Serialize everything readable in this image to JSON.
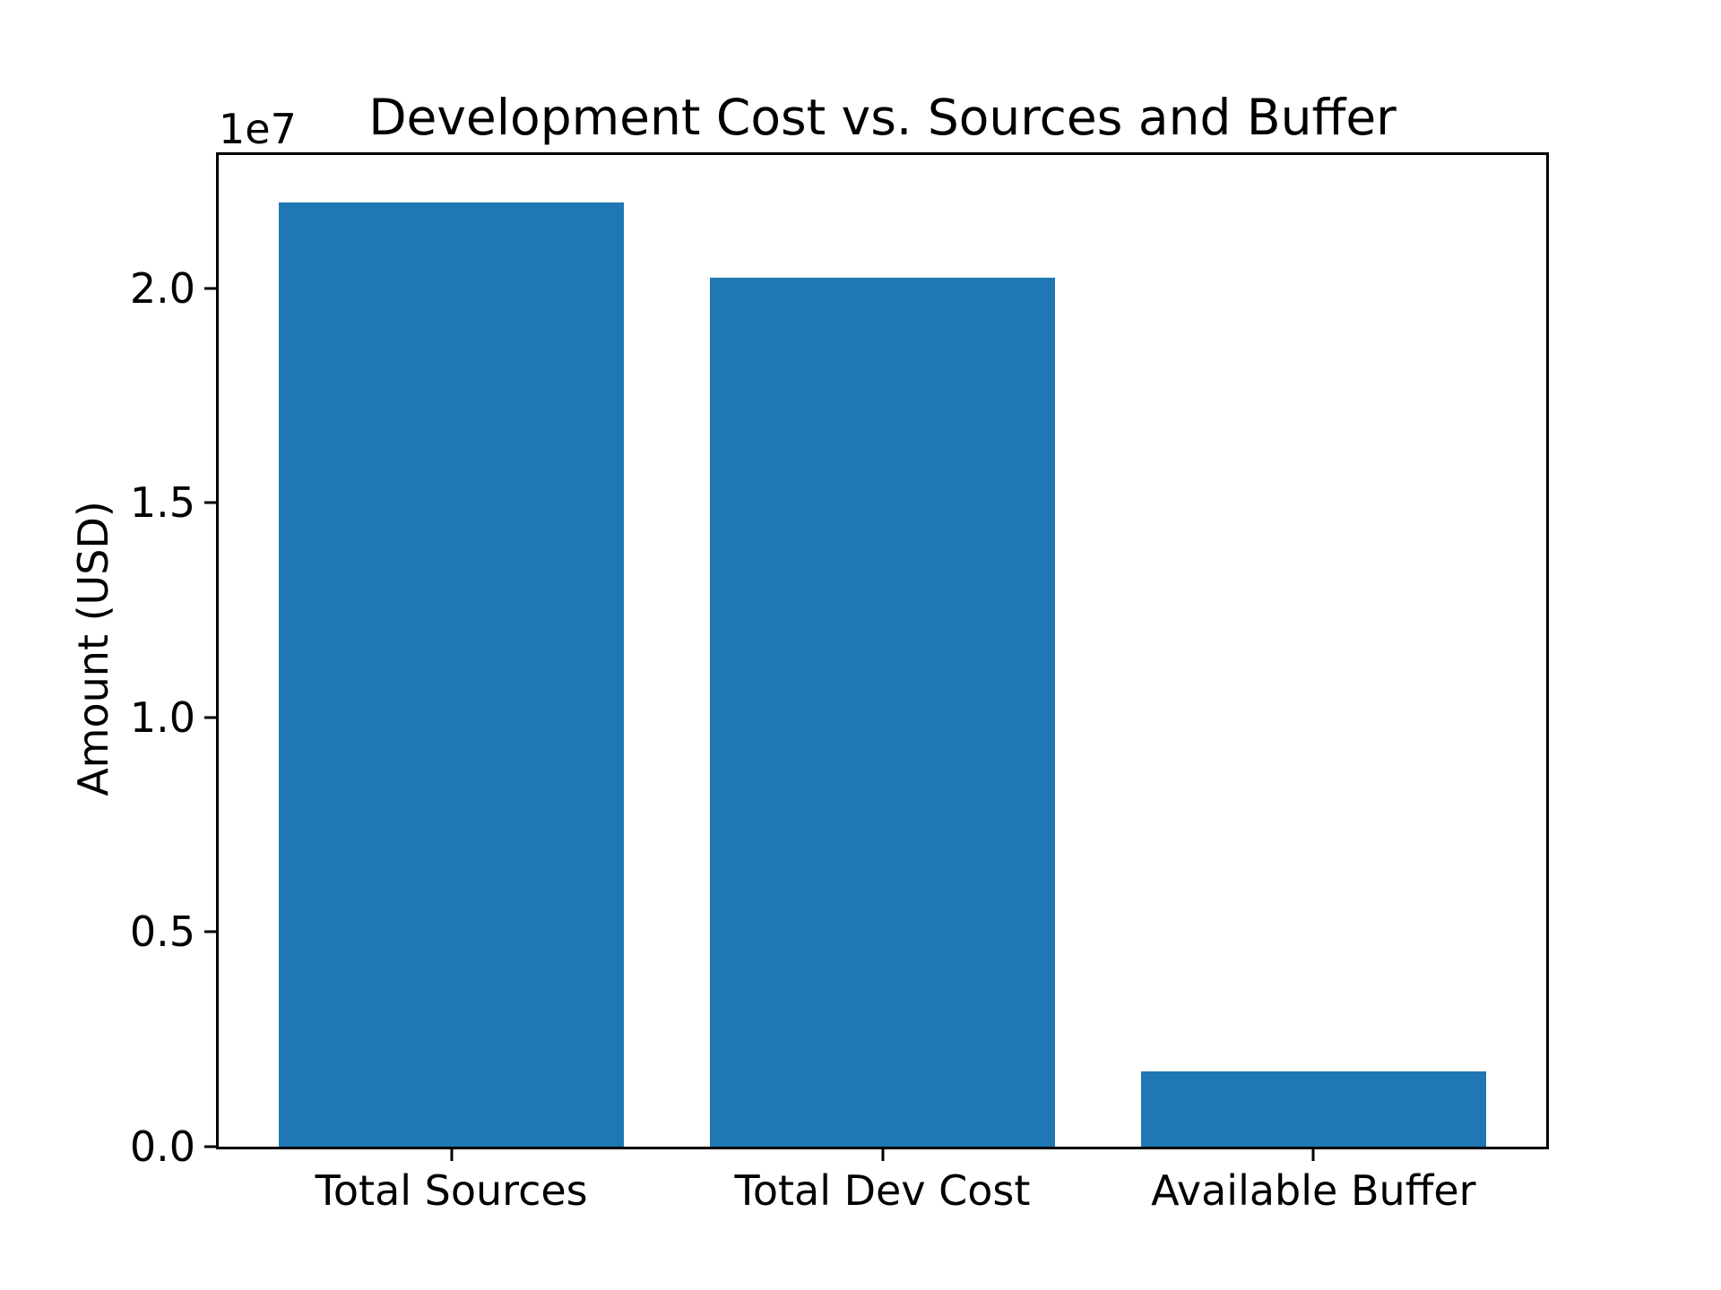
{
  "chart_data": {
    "type": "bar",
    "title": "Development Cost vs. Sources and Buffer",
    "xlabel": "",
    "ylabel": "Amount (USD)",
    "y_scale_label": "1e7",
    "categories": [
      "Total Sources",
      "Total Dev Cost",
      "Available Buffer"
    ],
    "values": [
      22000000,
      20250000,
      1750000
    ],
    "bar_color": "#1f77b4",
    "bar_width_units": 0.8,
    "xlim": [
      -0.54,
      2.54
    ],
    "ylim": [
      0,
      23100000
    ],
    "yticks": [
      {
        "value": 0,
        "label": "0.0"
      },
      {
        "value": 5000000,
        "label": "0.5"
      },
      {
        "value": 10000000,
        "label": "1.0"
      },
      {
        "value": 15000000,
        "label": "1.5"
      },
      {
        "value": 20000000,
        "label": "2.0"
      }
    ],
    "grid": false,
    "legend": false
  }
}
